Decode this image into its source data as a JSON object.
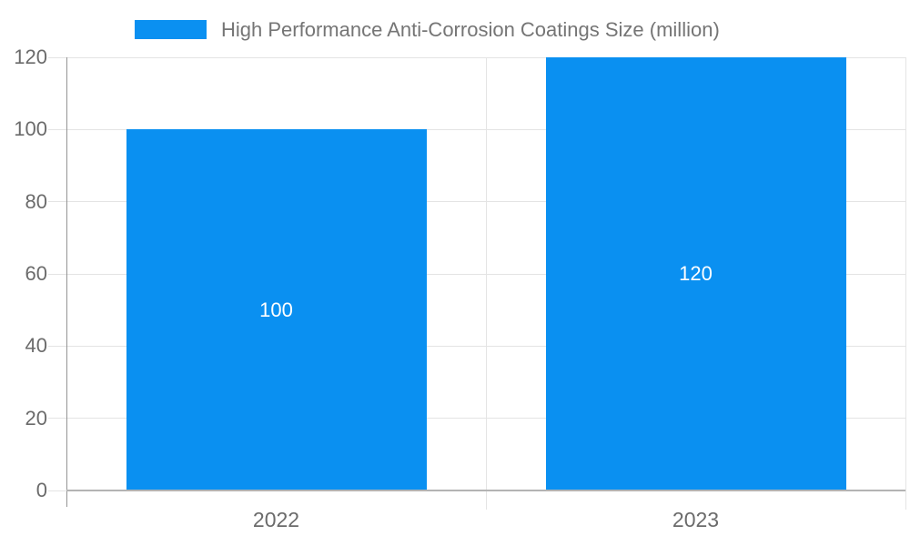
{
  "legend": {
    "label": "High Performance Anti-Corrosion Coatings Size (million)"
  },
  "chart_data": {
    "type": "bar",
    "categories": [
      "2022",
      "2023"
    ],
    "series": [
      {
        "name": "High Performance Anti-Corrosion Coatings Size (million)",
        "values": [
          100,
          120
        ]
      }
    ],
    "data_labels": [
      "100",
      "120"
    ],
    "title": "",
    "xlabel": "",
    "ylabel": "",
    "ylim": [
      0,
      120
    ],
    "yticks": [
      0,
      20,
      40,
      60,
      80,
      100,
      120
    ],
    "grid": true,
    "legend_position": "top"
  },
  "colors": {
    "bar": "#0A90F1",
    "data_label": "#FFFFFF",
    "grid_line": "#E4E4E4",
    "x_axis_line": "#B3B3B3",
    "y_axis_line": "#949494",
    "tick_label": "#6B6B6B",
    "legend_text": "#757575",
    "background": "#FFFFFF"
  }
}
